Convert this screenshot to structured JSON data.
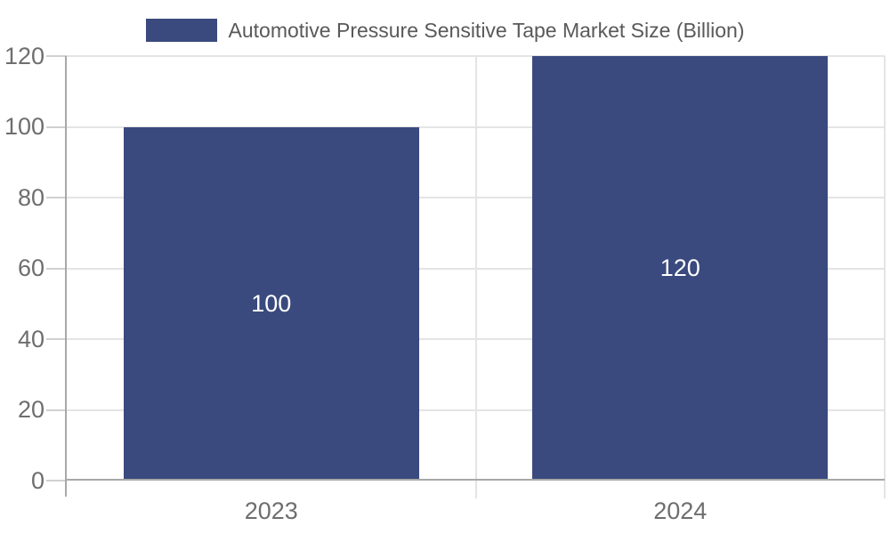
{
  "legend": {
    "label": "Automotive Pressure Sensitive Tape Market Size (Billion)",
    "swatch_color": "#3A4A7E"
  },
  "chart_data": {
    "type": "bar",
    "title": "",
    "xlabel": "",
    "ylabel": "",
    "categories": [
      "2023",
      "2024"
    ],
    "series": [
      {
        "name": "Automotive Pressure Sensitive Tape Market Size (Billion)",
        "values": [
          100,
          120
        ]
      }
    ],
    "value_labels": [
      "100",
      "120"
    ],
    "ylim": [
      0,
      120
    ],
    "yticks": [
      0,
      20,
      40,
      60,
      80,
      100,
      120
    ],
    "grid": true,
    "legend_position": "top-center"
  },
  "colors": {
    "bar": "#3A4A7E",
    "value_label": "#ffffff",
    "axis_line": "#a8a8a8",
    "gridline": "#e4e4e4",
    "tick": "#d0d0d0",
    "tick_label": "#6e6e6e",
    "legend_text": "#595959",
    "background": "#ffffff"
  }
}
